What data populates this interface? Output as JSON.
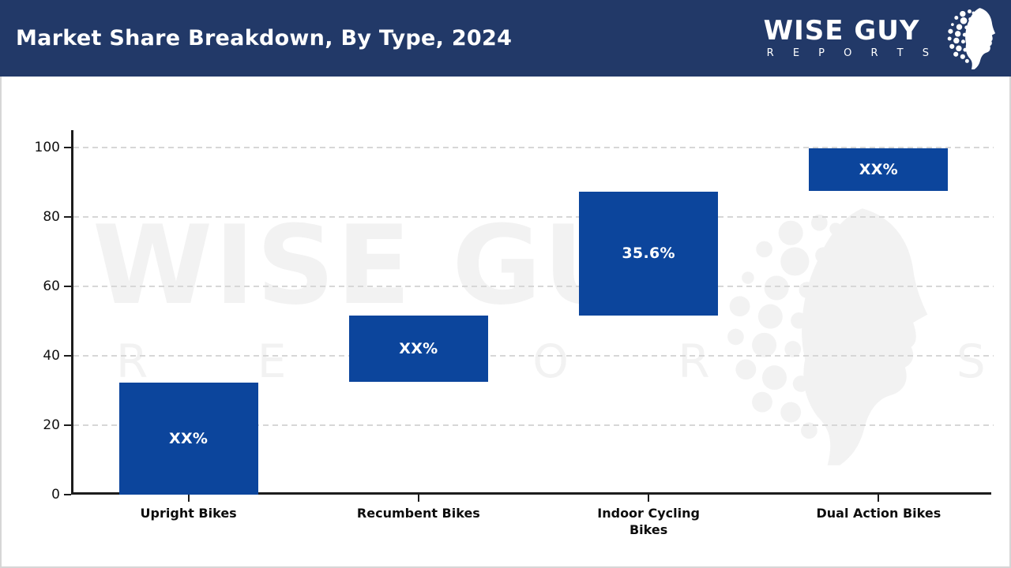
{
  "header": {
    "title": "Market Share Breakdown, By Type, 2024",
    "brand": {
      "name": "WISE GUY",
      "subname": "R E P O R T S"
    }
  },
  "watermark": {
    "line1": "WISE GUY",
    "line2": "R E P O R T S"
  },
  "colors": {
    "header_bg": "#223968",
    "bar": "#0c459c",
    "axis": "#1c1c1c",
    "grid": "#d7d7d7",
    "bar_label": "#ffffff",
    "watermark": "#f2f2f2"
  },
  "chart_data": {
    "type": "bar",
    "subtype": "floating-waterfall",
    "title": "Market Share Breakdown, By Type, 2024",
    "categories": [
      "Upright Bikes",
      "Recumbent Bikes",
      "Indoor Cycling Bikes",
      "Dual Action Bikes"
    ],
    "bars": [
      {
        "category": "Upright Bikes",
        "start": 0,
        "end": 32.3,
        "label": "XX%"
      },
      {
        "category": "Recumbent Bikes",
        "start": 32.4,
        "end": 51.6,
        "label": "XX%"
      },
      {
        "category": "Indoor Cycling Bikes",
        "start": 51.7,
        "end": 87.3,
        "label": "35.6%"
      },
      {
        "category": "Dual Action Bikes",
        "start": 87.4,
        "end": 99.8,
        "label": "XX%"
      }
    ],
    "xlabel": "",
    "ylabel": "",
    "yticks": [
      0,
      20,
      40,
      60,
      80,
      100
    ],
    "ylim": [
      0,
      105
    ],
    "grid": "horizontal-dashed",
    "legend": "none"
  }
}
